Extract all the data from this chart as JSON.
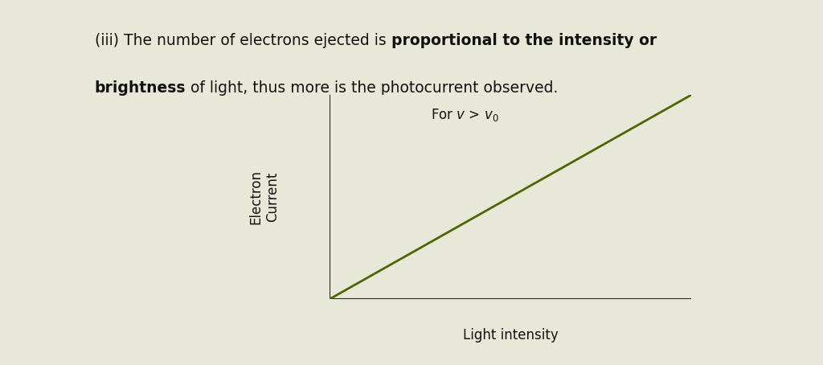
{
  "background_color": "#e8e8d8",
  "text_color": "#111111",
  "line_color": "#4a6600",
  "axes_color": "#222222",
  "title_fontsize": 13.5,
  "axis_label_fontsize": 12,
  "annotation_fontsize": 12,
  "ylabel": "Electron\nCurrent",
  "xlabel": "Light intensity",
  "annotation": "For v > v",
  "annotation_sub": "0"
}
